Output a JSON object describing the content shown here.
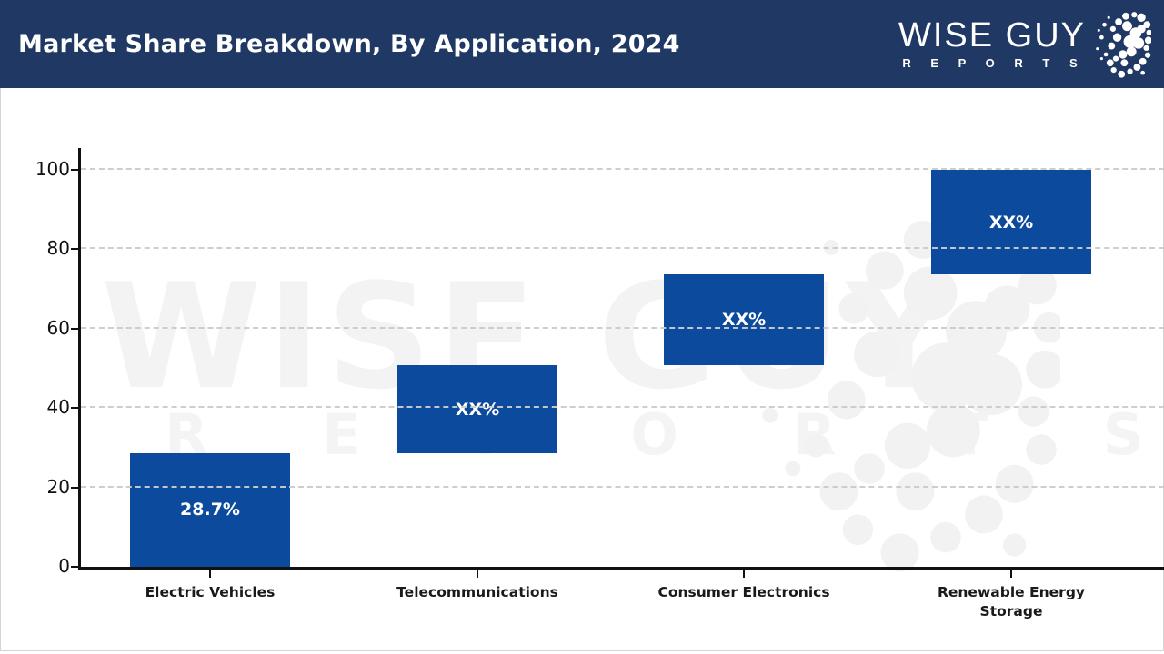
{
  "header": {
    "title": "Market Share Breakdown, By Application, 2024",
    "background_color": "#203864",
    "brand": {
      "name": "WISE GUY",
      "sub": "R E P O R T S"
    }
  },
  "watermark": {
    "line1": "WISE GUY",
    "line2": "R E P O R T S"
  },
  "chart_data": {
    "type": "bar",
    "variant": "floating-waterfall",
    "title": "Market Share Breakdown, By Application, 2024",
    "xlabel": "",
    "ylabel": "",
    "legend": "none",
    "grid": "horizontal dashed, drawn above bars",
    "ylim": [
      0,
      105
    ],
    "yticks": [
      0,
      20,
      40,
      60,
      80,
      100
    ],
    "bar_color": "#0c4a9e",
    "bar_label_color": "#ffffff",
    "categories": [
      "Electric Vehicles",
      "Telecommunications",
      "Consumer Electronics",
      "Renewable Energy Storage"
    ],
    "bars": [
      {
        "category": "Electric Vehicles",
        "start": 0,
        "end": 28.7,
        "label": "28.7%"
      },
      {
        "category": "Telecommunications",
        "start": 28.7,
        "end": 50.7,
        "label": "XX%"
      },
      {
        "category": "Consumer Electronics",
        "start": 50.7,
        "end": 73.6,
        "label": "XX%"
      },
      {
        "category": "Renewable Energy Storage",
        "start": 73.6,
        "end": 100,
        "label": "XX%"
      }
    ]
  }
}
